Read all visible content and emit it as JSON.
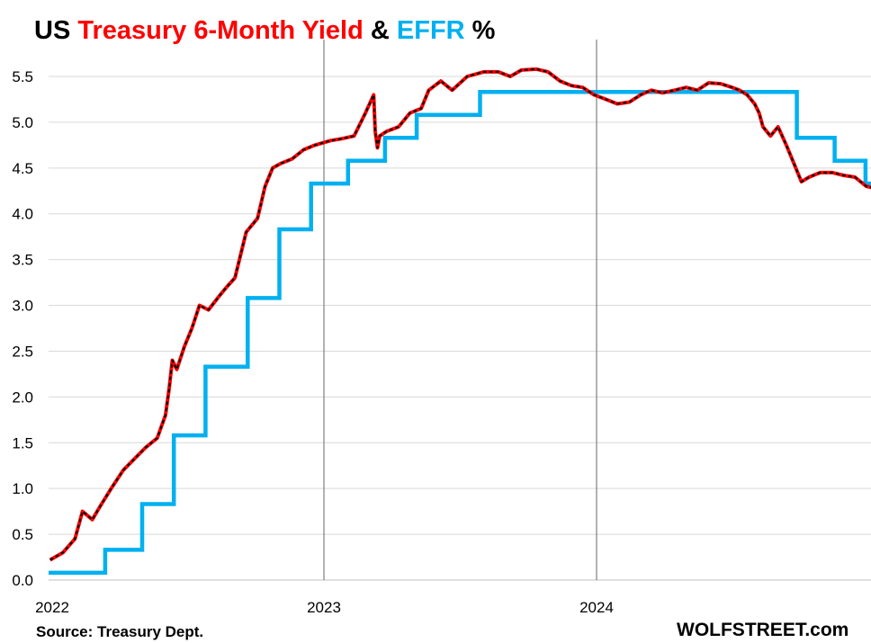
{
  "title_parts": [
    {
      "text": "US ",
      "color": "#000000"
    },
    {
      "text": "Treasury 6-Month Yield",
      "color": "#ff0000"
    },
    {
      "text": " & ",
      "color": "#000000"
    },
    {
      "text": "EFFR",
      "color": "#00b0f0"
    },
    {
      "text": " %",
      "color": "#000000"
    }
  ],
  "source": "Source: Treasury Dept.",
  "brand": "WOLFSTREET.com",
  "colors": {
    "yield_line": "#ff0000",
    "yield_dash": "#000000",
    "effr_line": "#00b0f0",
    "grid": "#d9d9d9",
    "year_divider": "#7f7f7f"
  },
  "chart_data": {
    "type": "line",
    "title": "US Treasury 6-Month Yield & EFFR %",
    "xlabel": "",
    "ylabel": "",
    "x_ticks": [
      "2022",
      "2023",
      "2024"
    ],
    "y_ticks": [
      0.0,
      0.5,
      1.0,
      1.5,
      2.0,
      2.5,
      3.0,
      3.5,
      4.0,
      4.5,
      5.0,
      5.5
    ],
    "ylim": [
      0,
      5.8
    ],
    "xlim": [
      "2022-01-01",
      "2024-12-31"
    ],
    "grid": true,
    "legend": "none",
    "series": [
      {
        "name": "Treasury 6-Month Yield",
        "style": "red line with black dashed overlay",
        "x": [
          "2022-01-03",
          "2022-01-20",
          "2022-02-05",
          "2022-02-15",
          "2022-02-28",
          "2022-03-10",
          "2022-03-25",
          "2022-04-10",
          "2022-04-28",
          "2022-05-10",
          "2022-05-25",
          "2022-06-05",
          "2022-06-10",
          "2022-06-14",
          "2022-06-20",
          "2022-06-30",
          "2022-07-10",
          "2022-07-20",
          "2022-08-01",
          "2022-08-15",
          "2022-08-25",
          "2022-09-05",
          "2022-09-20",
          "2022-09-25",
          "2022-10-05",
          "2022-10-15",
          "2022-10-25",
          "2022-11-05",
          "2022-11-20",
          "2022-12-05",
          "2022-12-20",
          "2023-01-10",
          "2023-01-25",
          "2023-02-10",
          "2023-02-25",
          "2023-03-08",
          "2023-03-10",
          "2023-03-13",
          "2023-03-16",
          "2023-03-25",
          "2023-04-10",
          "2023-04-25",
          "2023-05-10",
          "2023-05-20",
          "2023-06-05",
          "2023-06-20",
          "2023-07-10",
          "2023-08-01",
          "2023-08-20",
          "2023-09-05",
          "2023-09-20",
          "2023-10-10",
          "2023-10-25",
          "2023-11-10",
          "2023-11-25",
          "2023-12-10",
          "2023-12-25",
          "2024-01-10",
          "2024-01-25",
          "2024-02-10",
          "2024-02-25",
          "2024-03-10",
          "2024-03-25",
          "2024-04-10",
          "2024-04-25",
          "2024-05-10",
          "2024-05-25",
          "2024-06-10",
          "2024-06-25",
          "2024-07-05",
          "2024-07-15",
          "2024-07-25",
          "2024-07-31",
          "2024-08-05",
          "2024-08-15",
          "2024-08-25",
          "2024-09-05",
          "2024-09-15",
          "2024-09-25",
          "2024-10-05",
          "2024-10-20",
          "2024-11-05",
          "2024-11-20",
          "2024-12-05",
          "2024-12-20",
          "2024-12-31"
        ],
        "values": [
          0.22,
          0.3,
          0.45,
          0.75,
          0.66,
          0.8,
          1.0,
          1.2,
          1.35,
          1.45,
          1.55,
          1.8,
          2.1,
          2.4,
          2.3,
          2.55,
          2.75,
          3.0,
          2.95,
          3.1,
          3.2,
          3.3,
          3.8,
          3.85,
          3.95,
          4.3,
          4.5,
          4.55,
          4.6,
          4.7,
          4.75,
          4.8,
          4.82,
          4.85,
          5.1,
          5.3,
          4.9,
          4.72,
          4.85,
          4.9,
          4.95,
          5.1,
          5.15,
          5.35,
          5.45,
          5.35,
          5.5,
          5.55,
          5.55,
          5.5,
          5.57,
          5.58,
          5.55,
          5.45,
          5.4,
          5.38,
          5.3,
          5.25,
          5.2,
          5.22,
          5.3,
          5.35,
          5.32,
          5.35,
          5.38,
          5.35,
          5.43,
          5.42,
          5.38,
          5.35,
          5.3,
          5.2,
          5.1,
          4.95,
          4.85,
          4.95,
          4.75,
          4.55,
          4.35,
          4.4,
          4.45,
          4.45,
          4.42,
          4.4,
          4.3,
          4.28
        ]
      },
      {
        "name": "EFFR",
        "style": "step",
        "x": [
          "2022-01-01",
          "2022-03-17",
          "2022-05-05",
          "2022-06-16",
          "2022-07-28",
          "2022-09-22",
          "2022-11-03",
          "2022-12-15",
          "2023-02-02",
          "2023-03-23",
          "2023-05-04",
          "2023-07-27",
          "2024-09-19",
          "2024-11-08",
          "2024-12-19",
          "2024-12-31"
        ],
        "values": [
          0.08,
          0.33,
          0.83,
          1.58,
          2.33,
          3.08,
          3.83,
          4.33,
          4.58,
          4.83,
          5.08,
          5.33,
          4.83,
          4.58,
          4.33,
          4.33
        ]
      }
    ]
  }
}
